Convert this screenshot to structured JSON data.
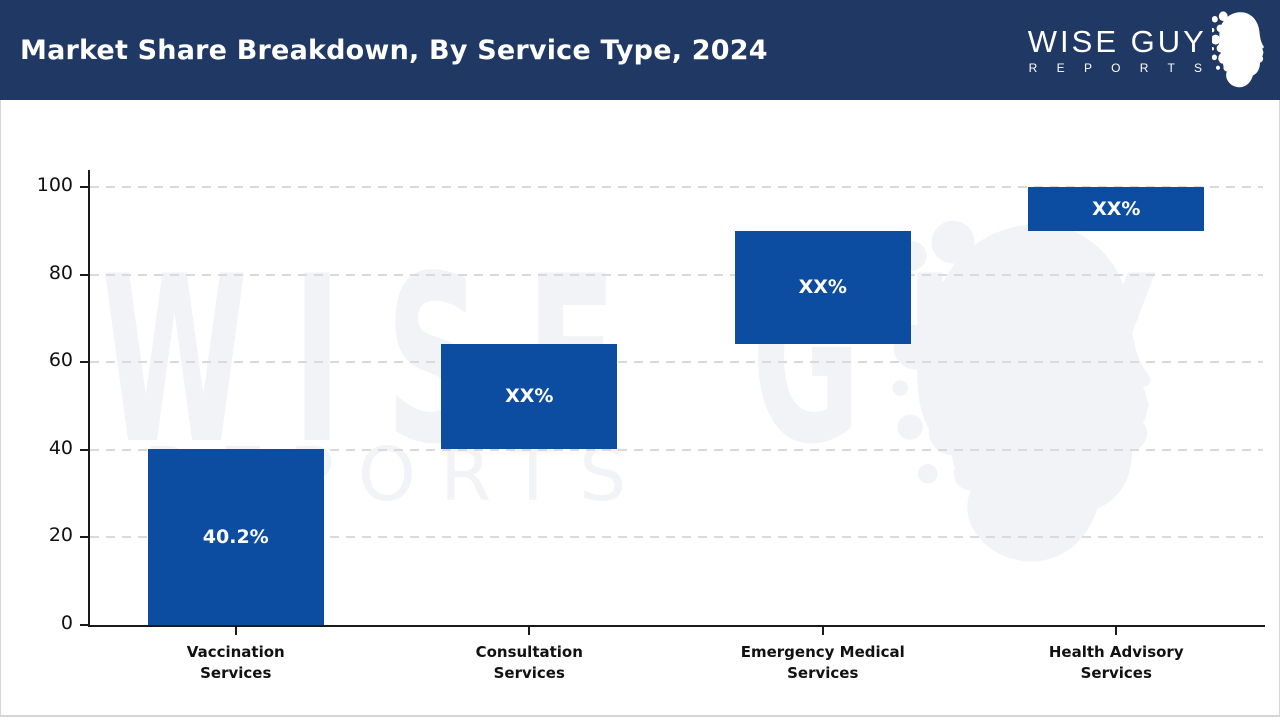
{
  "header": {
    "title": "Market Share Breakdown, By Service Type, 2024",
    "bg_color": "#1f3864",
    "logo": {
      "line1": "WISE GUY",
      "line2": "R E P O R T S"
    }
  },
  "watermark": {
    "line1": "WISE GUY",
    "line2": "REPORTS"
  },
  "chart_data": {
    "type": "bar",
    "subtype": "floating-waterfall",
    "title": "Market Share Breakdown, By Service Type, 2024",
    "categories": [
      "Vaccination\nServices",
      "Consultation\nServices",
      "Emergency Medical\nServices",
      "Health Advisory\nServices"
    ],
    "series": [
      {
        "name": "Market share",
        "segments": [
          {
            "start": 0,
            "end": 40.2,
            "label": "40.2%"
          },
          {
            "start": 40.2,
            "end": 64.2,
            "label": "XX%"
          },
          {
            "start": 64.2,
            "end": 90,
            "label": "XX%"
          },
          {
            "start": 90,
            "end": 100,
            "label": "XX%"
          }
        ]
      }
    ],
    "ylim": [
      0,
      100
    ],
    "yticks": [
      0,
      20,
      40,
      60,
      80,
      100
    ],
    "xlabel": "",
    "ylabel": "",
    "grid": "horizontal-dashed",
    "legend": "none",
    "bar_color": "#0c4da2",
    "bar_label_color": "#ffffff",
    "grid_color": "#dadada",
    "axis_color": "#1a1a1a"
  }
}
